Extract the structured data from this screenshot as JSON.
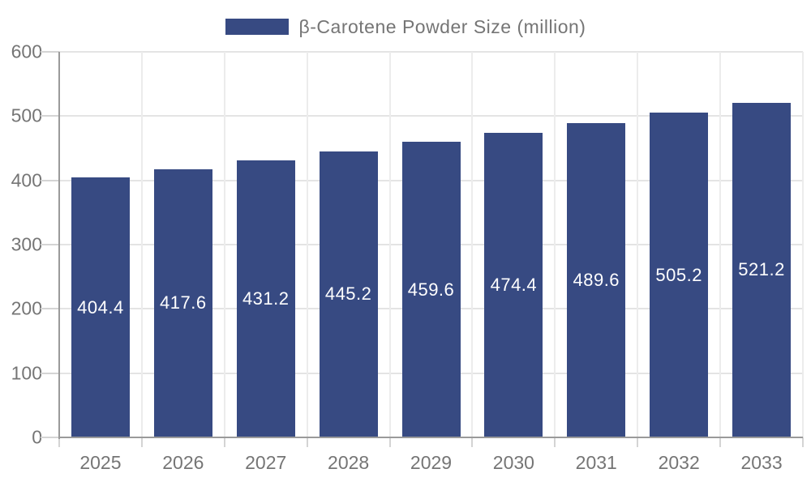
{
  "chart_data": {
    "type": "bar",
    "title": "β-Carotene Powder Size (million)",
    "categories": [
      "2025",
      "2026",
      "2027",
      "2028",
      "2029",
      "2030",
      "2031",
      "2032",
      "2033"
    ],
    "values": [
      404.4,
      417.6,
      431.2,
      445.2,
      459.6,
      474.4,
      489.6,
      505.2,
      521.2
    ],
    "xlabel": "",
    "ylabel": "",
    "ylim": [
      0,
      600
    ],
    "yticks": [
      0,
      100,
      200,
      300,
      400,
      500,
      600
    ],
    "grid": true,
    "legend_position": "top-center",
    "value_label_position": "inside-center",
    "colors": {
      "bar": "#374a82",
      "axis_line": "#9a9a9a",
      "h_grid_line": "#e4e4e4",
      "v_grid_line": "#ececec",
      "tick_line": "#d4d4d4",
      "axis_label": "#757575",
      "value_label": "#ffffff",
      "legend_text": "#757575",
      "background": "#ffffff"
    }
  }
}
